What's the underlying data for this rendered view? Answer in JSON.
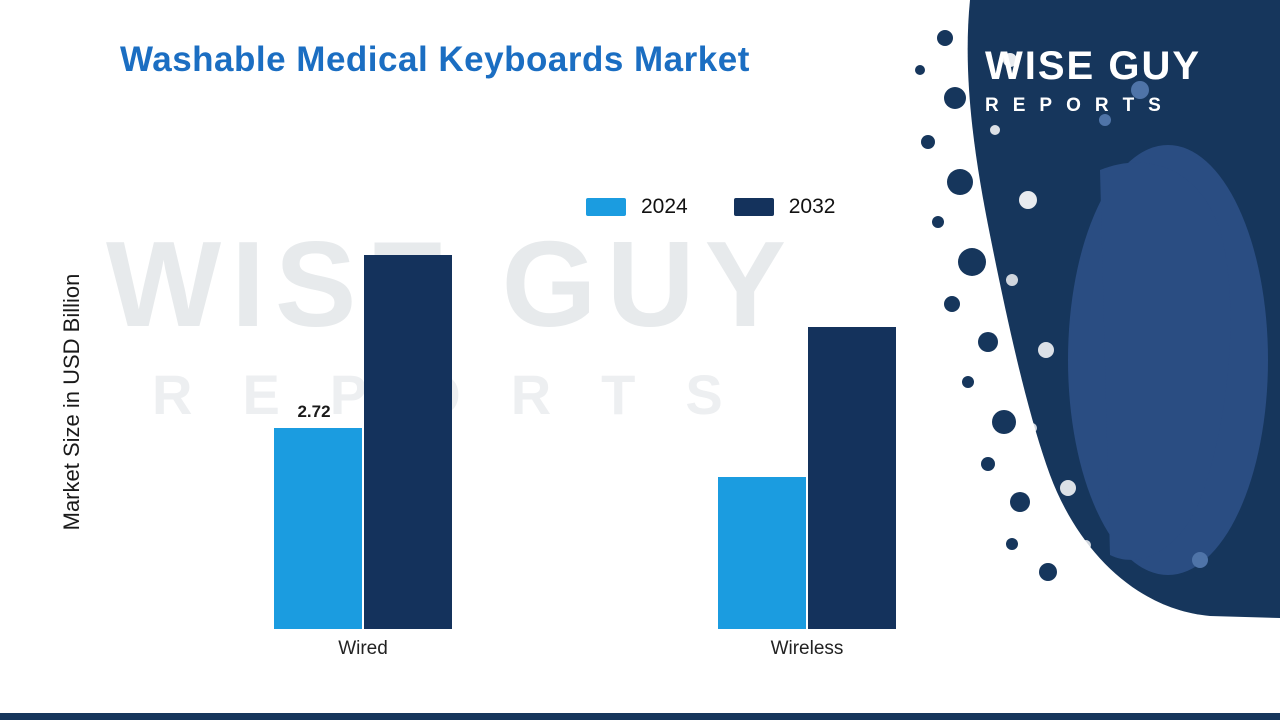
{
  "title": "Washable Medical Keyboards Market",
  "colors": {
    "title": "#1b6ec2",
    "series_2024": "#1b9ce0",
    "series_2032": "#14325c",
    "logo_background": "#16365c",
    "watermark": "#e7eaec"
  },
  "logo": {
    "line1": "WISE GUY",
    "line2": "REPORTS"
  },
  "watermark": {
    "line1": "WISE GUY",
    "line2": "REPORTS"
  },
  "chart_data": {
    "type": "bar",
    "title": "Washable Medical Keyboards Market",
    "categories": [
      "Wired",
      "Wireless"
    ],
    "series": [
      {
        "name": "2024",
        "color": "#1b9ce0",
        "values": [
          2.72,
          2.05
        ]
      },
      {
        "name": "2032",
        "color": "#14325c",
        "values": [
          5.05,
          4.08
        ]
      }
    ],
    "xlabel": "",
    "ylabel": "Market Size in USD Billion",
    "ylim": [
      0,
      5.4
    ],
    "grid": false,
    "legend_position": "top-center",
    "value_labels": [
      {
        "category": "Wired",
        "series": "2024",
        "text": "2.72"
      }
    ]
  }
}
